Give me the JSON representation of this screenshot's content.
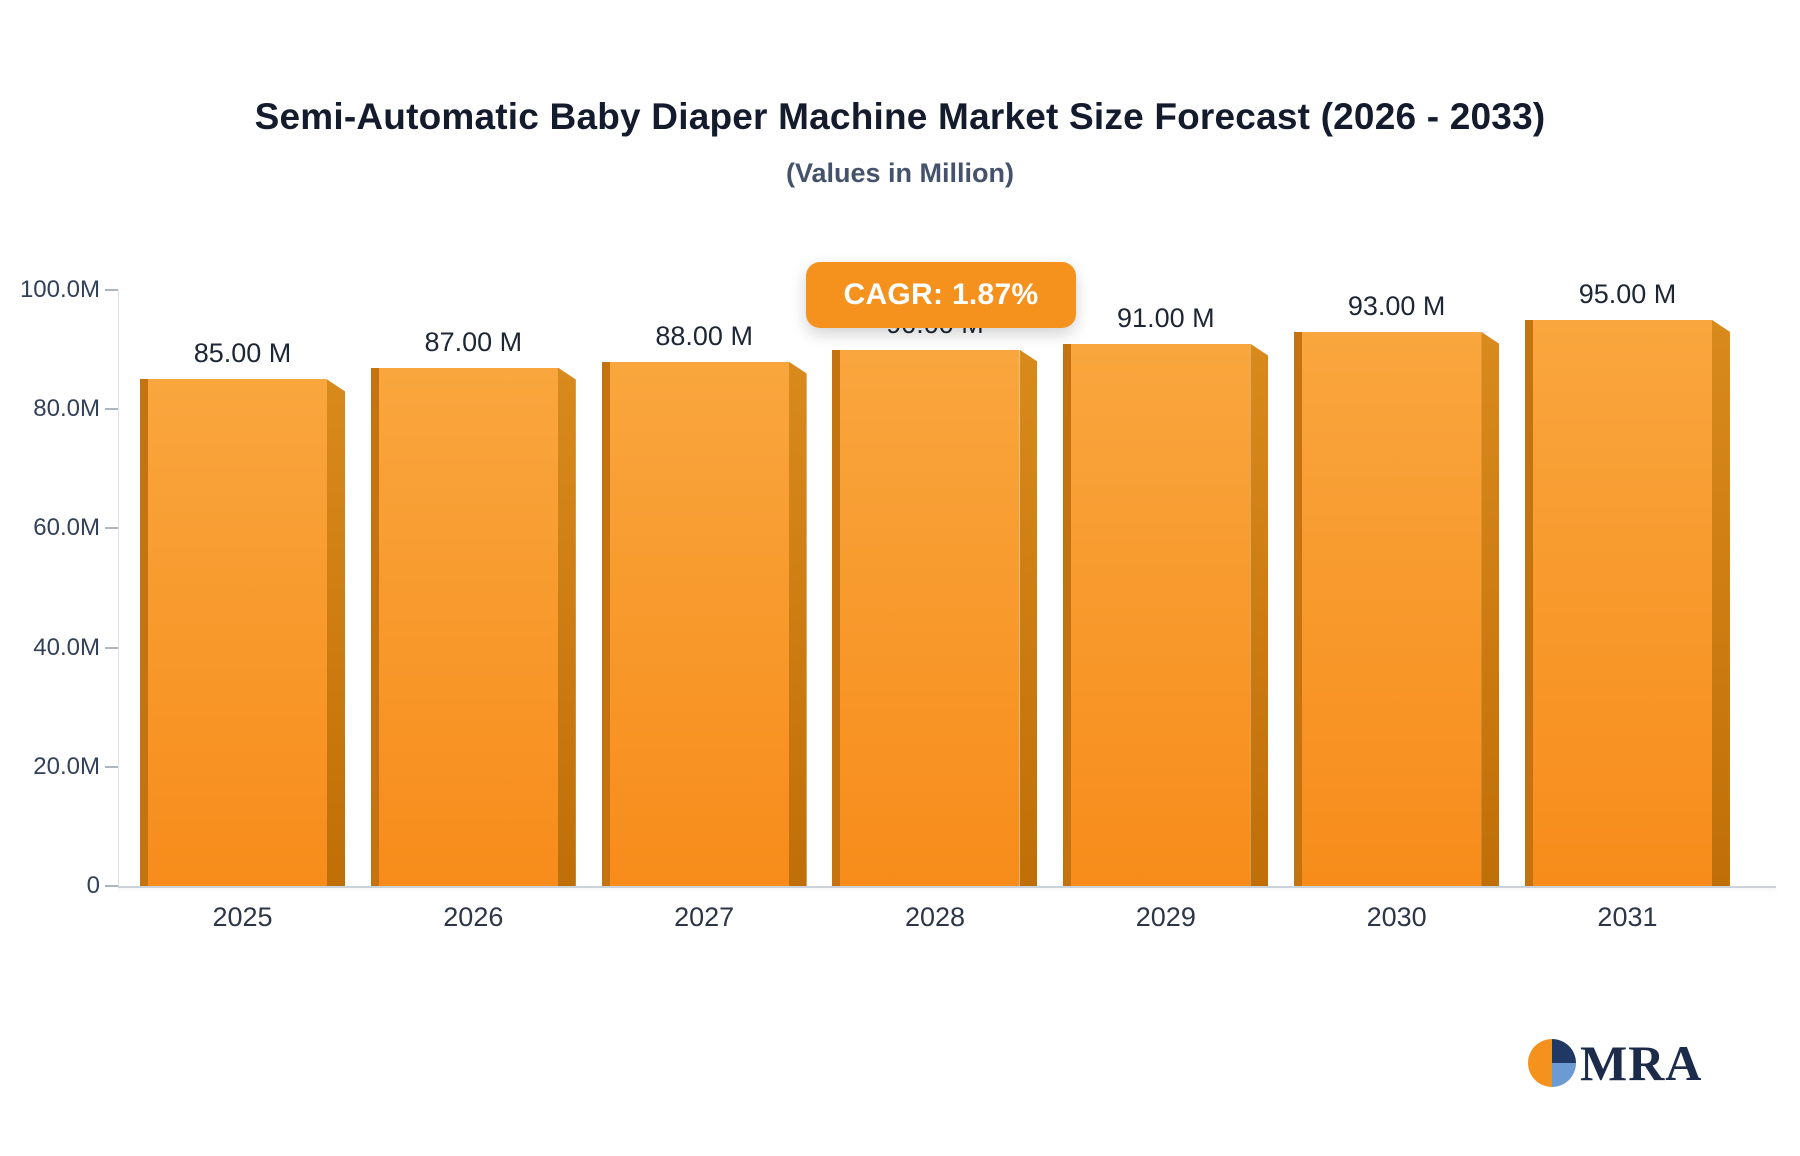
{
  "page": {
    "background": "#ffffff"
  },
  "header": {
    "title": "Semi-Automatic Baby Diaper Machine Market Size Forecast (2026 - 2033)",
    "subtitle": "(Values in Million)"
  },
  "cagr_badge": {
    "label": "CAGR: 1.87%",
    "background": "#f5921e",
    "text_color": "#ffffff"
  },
  "chart_data": {
    "type": "bar",
    "categories": [
      "2025",
      "2026",
      "2027",
      "2028",
      "2029",
      "2030",
      "2031"
    ],
    "values": [
      85,
      87,
      88,
      90,
      91,
      93,
      95
    ],
    "value_labels": [
      "85.00 M",
      "87.00 M",
      "88.00 M",
      "90.00 M",
      "91.00 M",
      "93.00 M",
      "95.00 M"
    ],
    "title": "Semi-Automatic Baby Diaper Machine Market Size Forecast (2026 - 2033)",
    "subtitle": "(Values in Million)",
    "xlabel": "",
    "ylabel": "",
    "ylim": [
      0,
      100
    ],
    "y_ticks": [
      {
        "value": 100,
        "label": "100.0M"
      },
      {
        "value": 80,
        "label": "80.0M"
      },
      {
        "value": 60,
        "label": "60.0M"
      },
      {
        "value": 40,
        "label": "40.0M"
      },
      {
        "value": 20,
        "label": "20.0M"
      },
      {
        "value": 0,
        "label": "0"
      }
    ],
    "grid": false,
    "legend": false,
    "bar_colors": {
      "front_top": "#f9a63e",
      "front_bottom": "#f78c1a",
      "left_edge": "#c57310",
      "side_top": "#d98a1c",
      "side_bottom": "#c06f08"
    }
  },
  "logo": {
    "text": "MRA",
    "colors": {
      "navy": "#1f3864",
      "light_blue": "#6b9bd2",
      "orange": "#f5921e",
      "text": "#1c2b4a"
    }
  }
}
